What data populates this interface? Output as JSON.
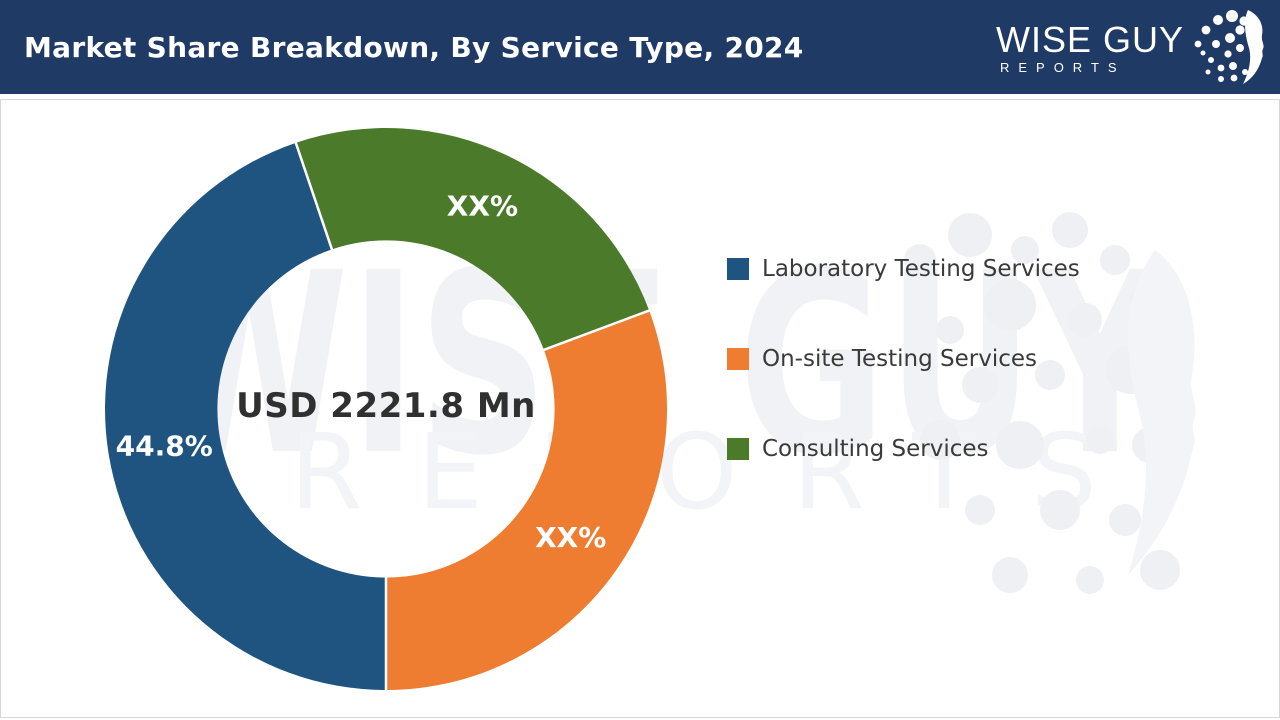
{
  "header": {
    "title": "Market Share Breakdown, By Service Type, 2024",
    "background_color": "#203a66",
    "logo": {
      "line1": "WISE GUY",
      "line2": "REPORTS"
    }
  },
  "watermark": {
    "line1": "WISE GUY",
    "line2": "REPORTS"
  },
  "chart_data": {
    "type": "pie",
    "subtype": "donut",
    "title": "Market Share Breakdown, By Service Type, 2024",
    "center_label": "USD 2221.8 Mn",
    "start_angle_deg": 180,
    "direction": "clockwise",
    "inner_radius_ratio": 0.6,
    "segments": [
      {
        "name": "Laboratory Testing Services",
        "value": 44.8,
        "label": "44.8%",
        "color": "#1f5480"
      },
      {
        "name": "Consulting Services",
        "value": 24.5,
        "label": "XX%",
        "color": "#4b7a2b"
      },
      {
        "name": "On-site Testing Services",
        "value": 30.7,
        "label": "XX%",
        "color": "#ee7d31"
      }
    ],
    "legend": [
      {
        "name": "Laboratory Testing Services",
        "color": "#1f5480"
      },
      {
        "name": "On-site Testing Services",
        "color": "#ee7d31"
      },
      {
        "name": "Consulting Services",
        "color": "#4b7a2b"
      }
    ],
    "legend_position": "right"
  }
}
